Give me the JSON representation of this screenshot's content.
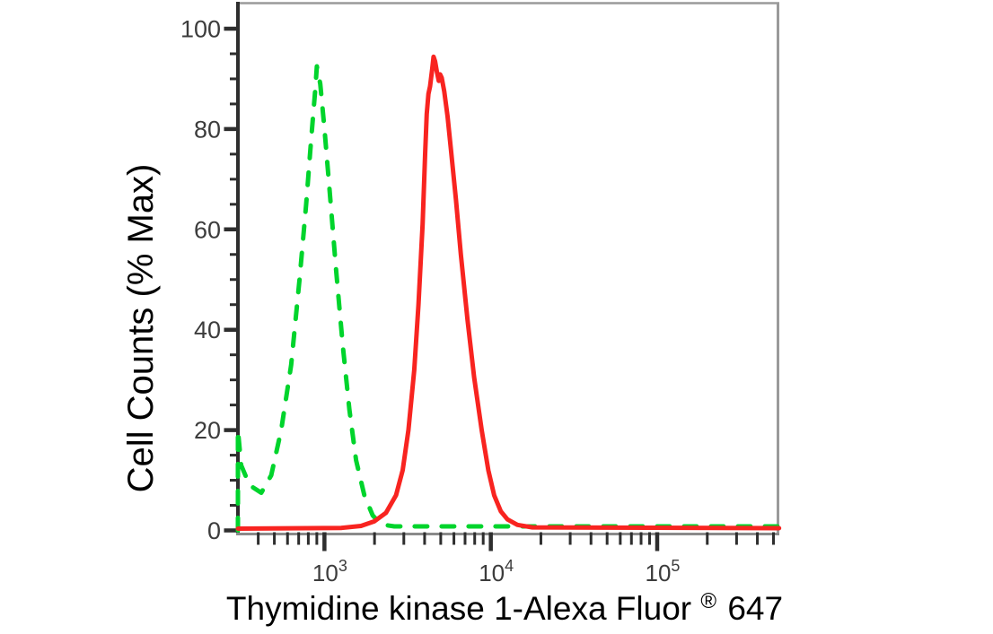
{
  "chart_data": {
    "type": "line",
    "variant": "flow_cytometry_histogram_overlay",
    "title": "",
    "xlabel": "Thymidine kinase 1-Alexa Fluor® 647",
    "xlabel_main": "Thymidine kinase 1-Alexa Fluor",
    "xlabel_registered_mark": "®",
    "xlabel_suffix": "647",
    "ylabel": "Cell Counts (% Max)",
    "x_scale": "log10",
    "x_log_range": [
      2.48,
      5.734
    ],
    "x_major_tick_exponents": [
      3,
      4,
      5
    ],
    "x_tick_base": "10",
    "ylim": [
      0,
      100
    ],
    "y_major_ticks": [
      0,
      20,
      40,
      60,
      80,
      100
    ],
    "y_minor_tick_step": 5,
    "grid": false,
    "legend": null,
    "background_color": "#ffffff",
    "axis_color": "#2e2e2e",
    "frame_color": "#9a9a9a",
    "bottom_axis_color": "#8a8a8a",
    "tick_label_color": "#3c3c3c",
    "series": [
      {
        "name": "green-dashed",
        "style": "dashed",
        "color": "#00d42c",
        "peak_x": 900,
        "peak_y_pct": 92.5,
        "points": [
          [
            302,
            0
          ],
          [
            302,
            20
          ],
          [
            316,
            13
          ],
          [
            355,
            9
          ],
          [
            417,
            7.5
          ],
          [
            479,
            11
          ],
          [
            550,
            20
          ],
          [
            631,
            33
          ],
          [
            708,
            50
          ],
          [
            776,
            65
          ],
          [
            832,
            78
          ],
          [
            881,
            88
          ],
          [
            900,
            92.5
          ],
          [
            944,
            89
          ],
          [
            1000,
            80
          ],
          [
            1072,
            68
          ],
          [
            1175,
            52
          ],
          [
            1288,
            37
          ],
          [
            1413,
            24
          ],
          [
            1549,
            14
          ],
          [
            1738,
            7
          ],
          [
            1950,
            3
          ],
          [
            2188,
            1.2
          ],
          [
            2630,
            0.8
          ],
          [
            540000,
            0.8
          ]
        ]
      },
      {
        "name": "red-solid",
        "style": "solid",
        "color": "#f82420",
        "peak_x": 4529,
        "peak_y_pct": 94.4,
        "points": [
          [
            302,
            0.35
          ],
          [
            1259,
            0.5
          ],
          [
            1660,
            0.9
          ],
          [
            1995,
            1.8
          ],
          [
            2344,
            3.5
          ],
          [
            2692,
            7
          ],
          [
            2951,
            12
          ],
          [
            3199,
            20
          ],
          [
            3467,
            32
          ],
          [
            3673,
            45
          ],
          [
            3890,
            61
          ],
          [
            4027,
            75
          ],
          [
            4121,
            83
          ],
          [
            4217,
            87
          ],
          [
            4315,
            88.5
          ],
          [
            4446,
            92
          ],
          [
            4529,
            94.4
          ],
          [
            4624,
            93.5
          ],
          [
            4732,
            91.5
          ],
          [
            4864,
            89.6
          ],
          [
            4955,
            90.9
          ],
          [
            5070,
            90.2
          ],
          [
            5248,
            87.5
          ],
          [
            5495,
            82.5
          ],
          [
            5754,
            76
          ],
          [
            6166,
            66
          ],
          [
            6607,
            55
          ],
          [
            7244,
            42
          ],
          [
            7943,
            30.5
          ],
          [
            8810,
            20
          ],
          [
            9660,
            12
          ],
          [
            10471,
            7
          ],
          [
            11482,
            3.8
          ],
          [
            12589,
            2.2
          ],
          [
            14454,
            1.1
          ],
          [
            17783,
            0.6
          ],
          [
            540000,
            0.45
          ]
        ]
      }
    ]
  }
}
